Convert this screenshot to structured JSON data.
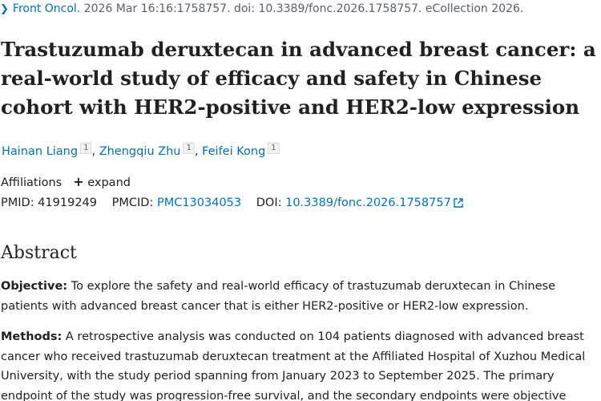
{
  "citation": {
    "journal": "Front Oncol.",
    "rest": " 2026 Mar 16:16:1758757. doi: 10.3389/fonc.2026.1758757. eCollection 2026."
  },
  "title_lines": [
    "Trastuzumab deruxtecan in advanced breast cancer: a",
    "real-world study of efficacy and safety in Chinese",
    "cohort with HER2-positive and HER2-low expression"
  ],
  "authors": [
    {
      "name": "Hainan Liang",
      "affil": "1"
    },
    {
      "name": "Zhengqiu Zhu",
      "affil": "1"
    },
    {
      "name": "Feifei Kong",
      "affil": "1"
    }
  ],
  "affiliations": {
    "label": "Affiliations",
    "expand_label": "expand"
  },
  "identifiers": {
    "pmid_label": "PMID:",
    "pmid": "41919249",
    "pmcid_label": "PMCID:",
    "pmcid": "PMC13034053",
    "doi_label": "DOI:",
    "doi": "10.3389/fonc.2026.1758757"
  },
  "abstract": {
    "heading": "Abstract",
    "objective_label": "Objective:",
    "objective_lines": [
      " To explore the safety and real-world efficacy of trastuzumab deruxtecan in Chinese",
      "patients with advanced breast cancer that is either HER2-positive or HER2-low expression."
    ],
    "methods_label": "Methods:",
    "methods_lines": [
      " A retrospective analysis was conducted on 104 patients diagnosed with advanced breast",
      "cancer who received trastuzumab deruxtecan treatment at the Affiliated Hospital of Xuzhou Medical",
      "University, with the study period spanning from January 2023 to September 2025. The primary",
      "endpoint of the study was progression-free survival, and the secondary endpoints were objective"
    ]
  },
  "colors": {
    "link": "#0071bc",
    "text": "#212121",
    "muted": "#5b616b"
  }
}
